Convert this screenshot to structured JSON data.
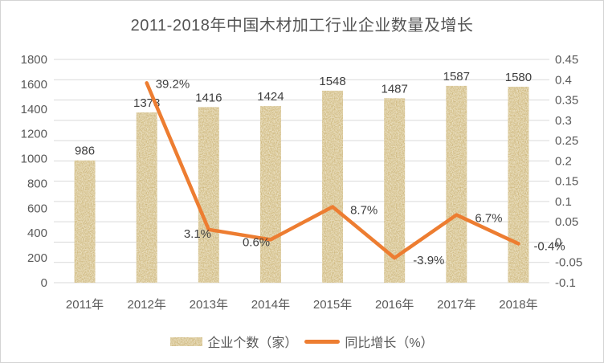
{
  "title": "2011-2018年中国木材加工行业企业数量及增长",
  "legend": {
    "bar_label": "企业个数（家）",
    "line_label": "同比增长（%）"
  },
  "colors": {
    "accent_orange": "#ED7D31",
    "bar_base": "#d7c28a",
    "grid": "#d9d9d9",
    "axis_text": "#595959",
    "data_label": "#3f3f3f",
    "title_text": "#545454",
    "border": "#d4d4d4"
  },
  "chart_data": {
    "type": "bar",
    "subtype": "combo-bar-line",
    "title": "2011-2018年中国木材加工行业企业数量及增长",
    "categories": [
      "2011年",
      "2012年",
      "2013年",
      "2014年",
      "2015年",
      "2016年",
      "2017年",
      "2018年"
    ],
    "series": [
      {
        "name": "企业个数（家）",
        "type": "bar",
        "axis": "left",
        "values": [
          986,
          1373,
          1416,
          1424,
          1548,
          1487,
          1587,
          1580
        ],
        "labels": [
          "986",
          "1373",
          "1416",
          "1424",
          "1548",
          "1487",
          "1587",
          "1580"
        ]
      },
      {
        "name": "同比增长（%）",
        "type": "line",
        "axis": "right",
        "start_index": 1,
        "values": [
          0.392,
          0.031,
          0.006,
          0.087,
          -0.039,
          0.067,
          -0.004
        ],
        "labels": [
          "39.2%",
          "3.1%",
          "0.6%",
          "8.7%",
          "-3.9%",
          "6.7%",
          "-0.4%"
        ],
        "label_dx": [
          11,
          -31,
          -35,
          22,
          23,
          23,
          19
        ],
        "label_dy": [
          1,
          5,
          3,
          4,
          3,
          4,
          3
        ]
      }
    ],
    "left_axis": {
      "min": 0,
      "max": 1800,
      "ticks": [
        "1800",
        "1600",
        "1400",
        "1200",
        "1000",
        "800",
        "600",
        "400",
        "200",
        "0"
      ]
    },
    "right_axis": {
      "min": -0.1,
      "max": 0.45,
      "ticks": [
        "0.45",
        "0.4",
        "0.35",
        "0.3",
        "0.25",
        "0.2",
        "0.15",
        "0.1",
        "0.05",
        "0",
        "-0.05",
        "-0.1"
      ]
    },
    "grid": true,
    "legend_position": "bottom",
    "xlabel": "",
    "ylabel": ""
  }
}
